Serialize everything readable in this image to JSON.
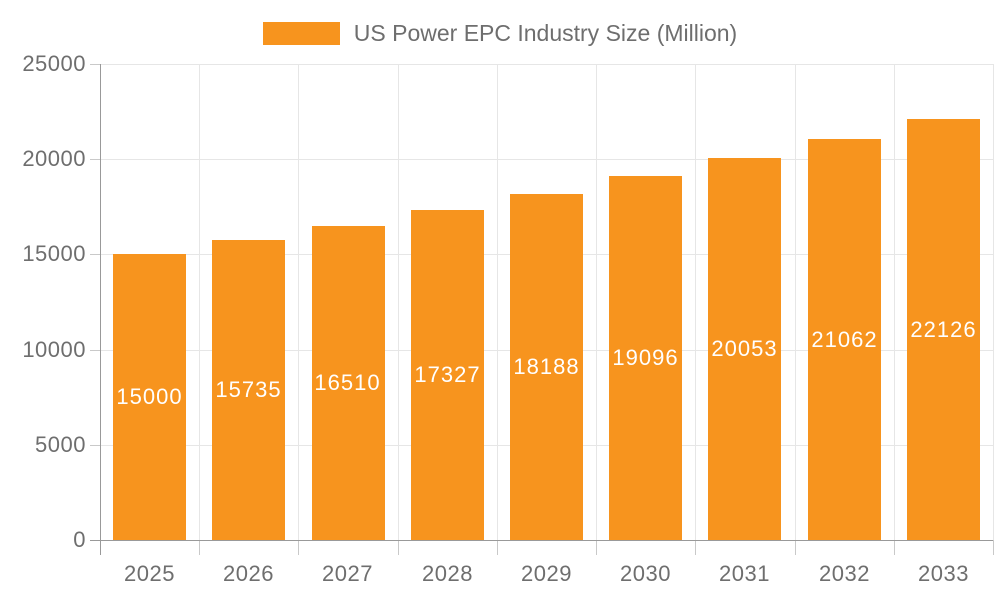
{
  "legend": {
    "label": "US Power EPC Industry Size (Million)"
  },
  "colors": {
    "bar": "#f7941e",
    "axis_line": "#999999",
    "tick_mark": "#c9c9c9",
    "gridline": "#e6e6e6",
    "tick_label_text": "#6e6e6e",
    "legend_text": "#6e6e6e",
    "value_label_text": "#ffffff",
    "background": "#ffffff"
  },
  "chart_data": {
    "type": "bar",
    "title": "US Power EPC Industry Size (Million)",
    "series_name": "US Power EPC Industry Size (Million)",
    "categories": [
      "2025",
      "2026",
      "2027",
      "2028",
      "2029",
      "2030",
      "2031",
      "2032",
      "2033"
    ],
    "values": [
      15000,
      15735,
      16510,
      17327,
      18188,
      19096,
      20053,
      21062,
      22126
    ],
    "value_labels": [
      "15000",
      "15735",
      "16510",
      "17327",
      "18188",
      "19096",
      "20053",
      "21062",
      "22126"
    ],
    "xlabel": "",
    "ylabel": "",
    "ylim": [
      0,
      25000
    ],
    "y_ticks": [
      0,
      5000,
      10000,
      15000,
      20000,
      25000
    ],
    "y_tick_labels": [
      "0",
      "5000",
      "10000",
      "15000",
      "20000",
      "25000"
    ],
    "grid": true,
    "legend_position": "top-center",
    "bar_label_position": "inside-middle"
  }
}
